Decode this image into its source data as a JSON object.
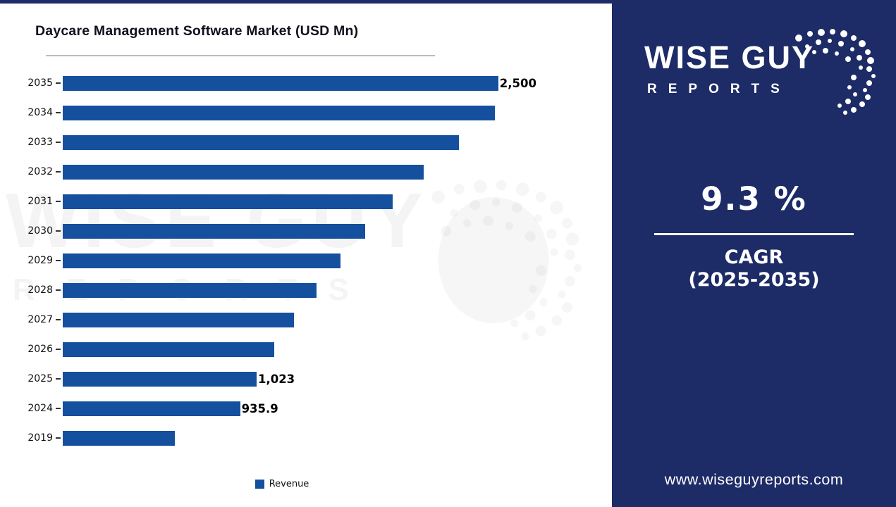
{
  "title": "Daycare Management Software Market (USD Mn)",
  "chart_data": {
    "type": "bar",
    "orientation": "horizontal",
    "title": "Daycare Management Software Market (USD Mn)",
    "xlabel": "",
    "ylabel": "",
    "xlim": [
      0,
      2500
    ],
    "grid": false,
    "legend_position": "bottom-center",
    "bar_color": "#14509e",
    "categories": [
      "2035",
      "2034",
      "2033",
      "2032",
      "2031",
      "2030",
      "2029",
      "2028",
      "2027",
      "2026",
      "2025",
      "2024",
      "2019"
    ],
    "values": [
      2500,
      2280,
      2090,
      1905,
      1740,
      1595,
      1465,
      1340,
      1220,
      1115,
      1023,
      935.9,
      592
    ],
    "value_labels": [
      "2,500",
      "",
      "",
      "",
      "",
      "",
      "",
      "",
      "",
      "",
      "1,023",
      "935.9",
      ""
    ],
    "series_name": "Revenue"
  },
  "legend": {
    "label": "Revenue"
  },
  "watermark": {
    "line1": "WISE GUY",
    "line2": "REPORTS"
  },
  "sidebar": {
    "bg_color": "#1d2b67",
    "logo_line1": "WISE GUY",
    "logo_line2": "REPORTS",
    "cagr_value": "9.3 %",
    "cagr_label": "CAGR",
    "cagr_range": "(2025-2035)",
    "website": "www.wiseguyreports.com"
  }
}
